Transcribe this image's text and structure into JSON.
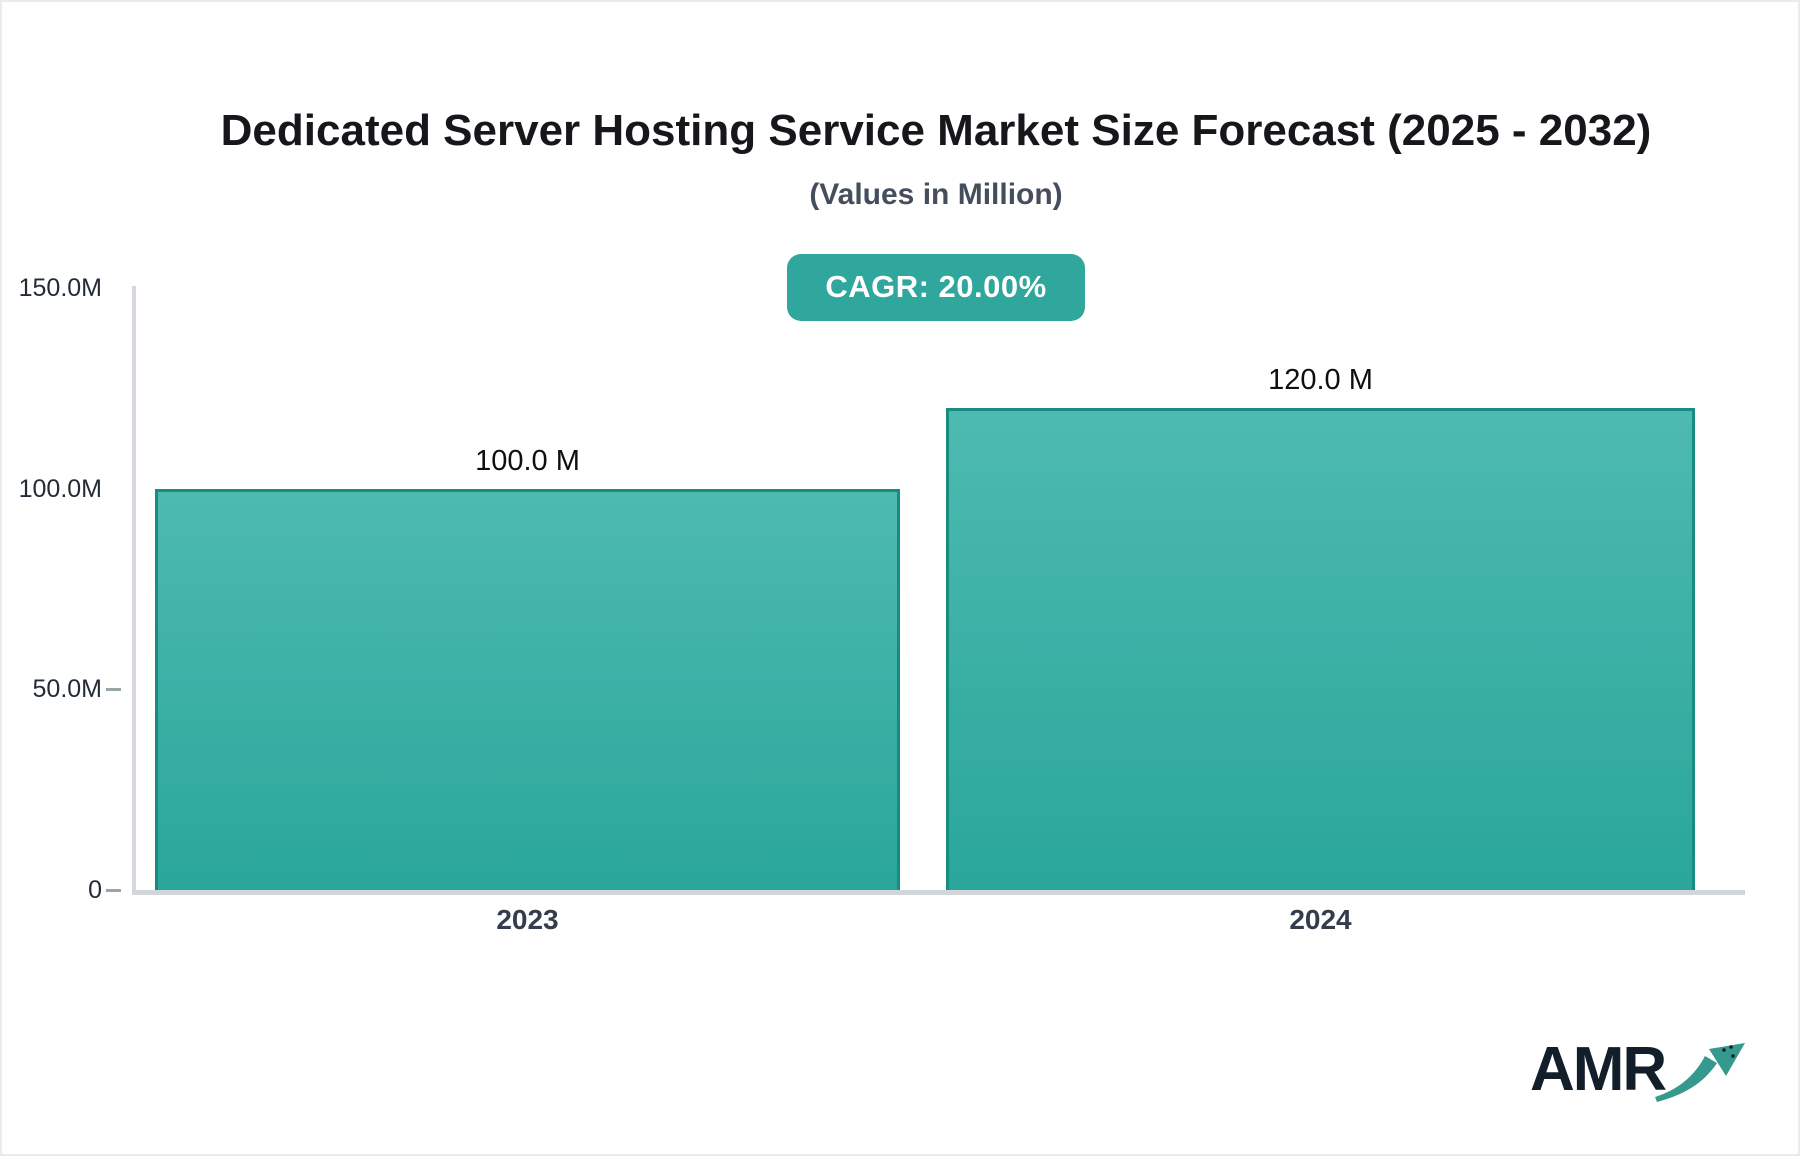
{
  "page": {
    "background": "#ffffff",
    "border_color": "#e9ecef"
  },
  "header": {
    "title": "Dedicated Server Hosting Service Market Size Forecast (2025 - 2032)",
    "subtitle": "(Values in Million)"
  },
  "badge": {
    "label": "CAGR: 20.00%",
    "background": "#2fa79c",
    "text_color": "#ffffff"
  },
  "chart_data": {
    "type": "bar",
    "title": "Dedicated Server Hosting Service Market Size Forecast (2025 - 2032)",
    "subtitle": "(Values in Million)",
    "unit": "Million",
    "cagr": "20.00%",
    "categories": [
      "2023",
      "2024"
    ],
    "values": [
      100.0,
      120.0
    ],
    "value_labels": [
      "100.0 M",
      "120.0 M"
    ],
    "ylim": [
      0,
      150
    ],
    "yticks": [
      {
        "value": 150,
        "label": "150.0M",
        "tick_mark": false
      },
      {
        "value": 100,
        "label": "100.0M",
        "tick_mark": false
      },
      {
        "value": 50,
        "label": "50.0M",
        "tick_mark": true
      },
      {
        "value": 0,
        "label": "0",
        "tick_mark": true
      }
    ],
    "grid": false,
    "legend": false,
    "bar_color_top": "#4dbab0",
    "bar_color_bottom": "#2aa69a",
    "bar_border_color": "#188c81"
  },
  "logo": {
    "text": "AMR",
    "text_color": "#131e2b",
    "arrow_color": "#35998e"
  }
}
